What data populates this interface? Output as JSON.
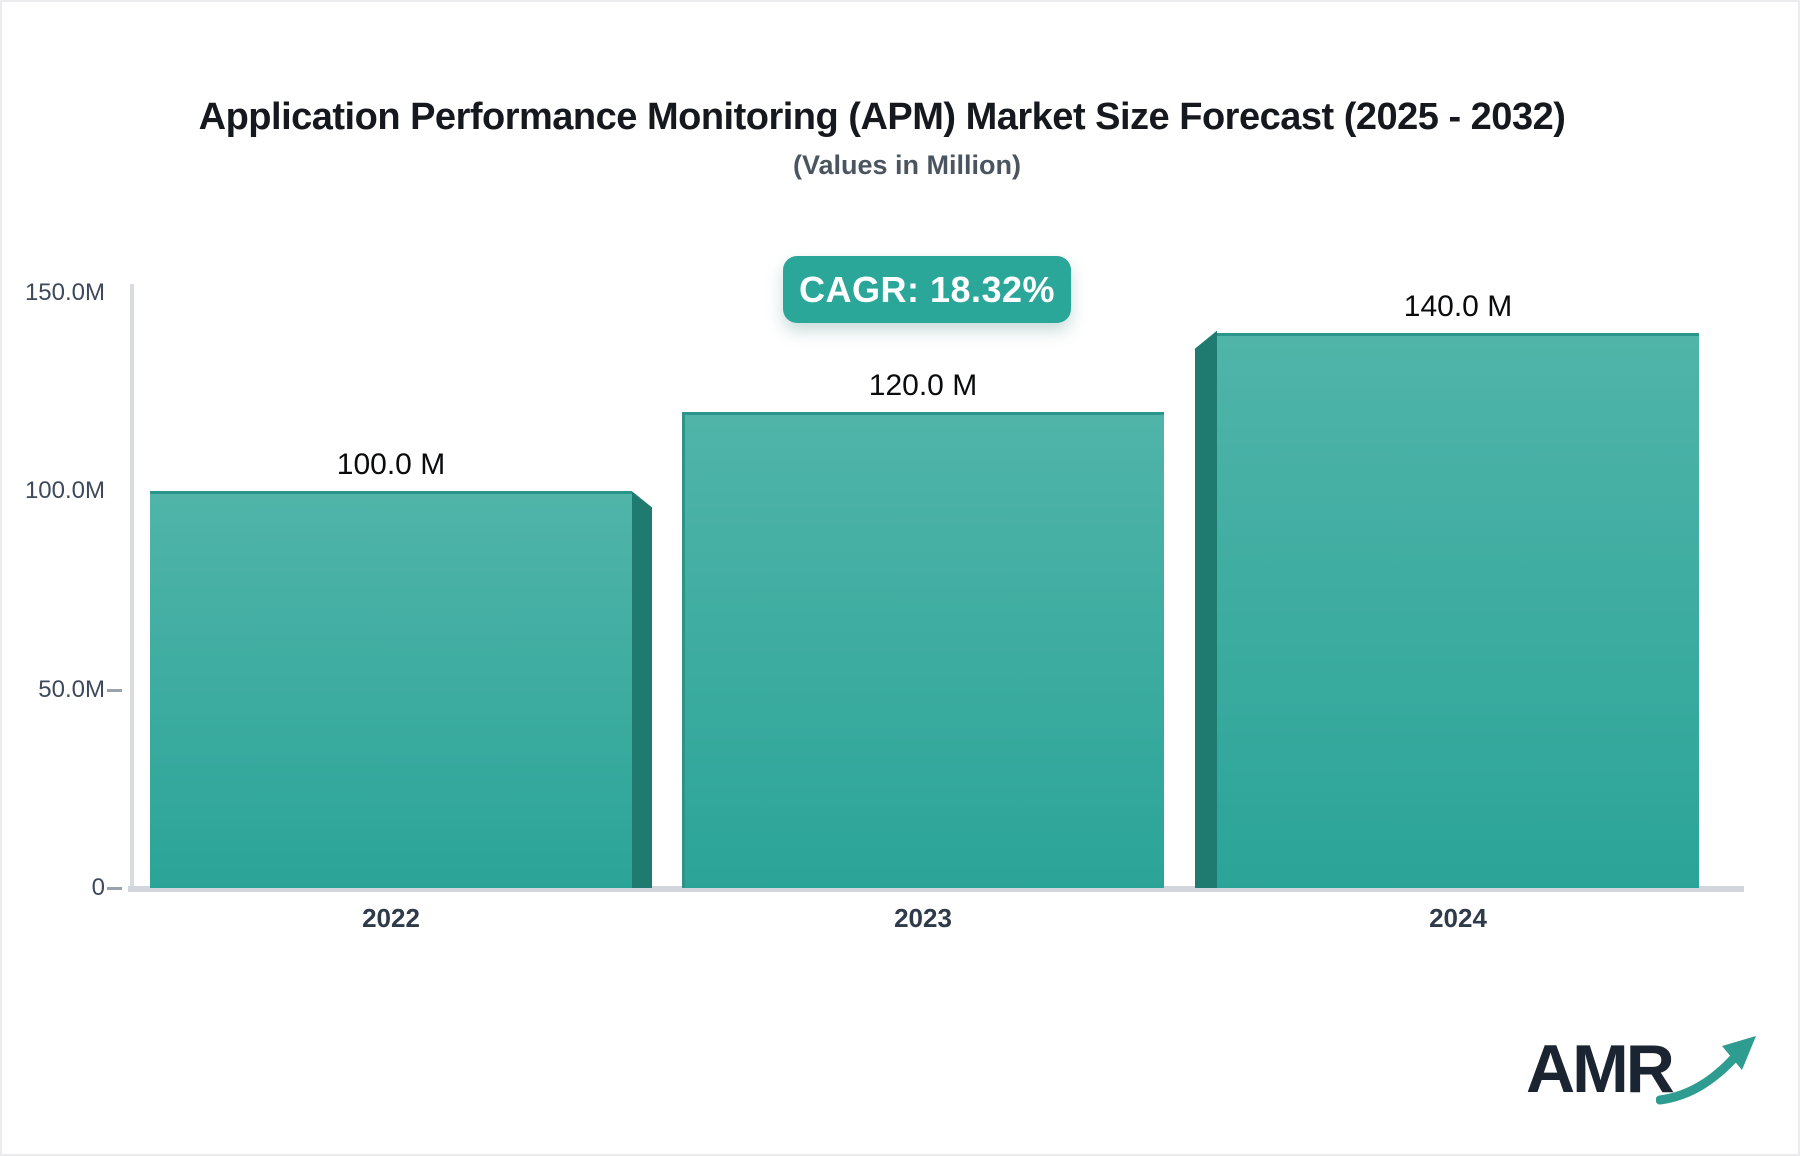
{
  "header": {
    "title": "Application Performance Monitoring (APM) Market Size Forecast (2025 - 2032)",
    "subtitle": "(Values in Million)"
  },
  "badge": {
    "label": "CAGR: 18.32%",
    "bg_color": "#2ba79a",
    "text_color": "#ffffff"
  },
  "chart_data": {
    "type": "bar",
    "title": "Application Performance Monitoring (APM) Market Size Forecast (2025 - 2032)",
    "subtitle": "(Values in Million)",
    "unit": "Million",
    "cagr_percent": 18.32,
    "categories": [
      "2022",
      "2023",
      "2024"
    ],
    "values": [
      100.0,
      120.0,
      140.0
    ],
    "bars": [
      {
        "category": "2022",
        "value": 100.0,
        "label": "100.0 M",
        "side": "right"
      },
      {
        "category": "2023",
        "value": 120.0,
        "label": "120.0 M",
        "side": "left-thin"
      },
      {
        "category": "2024",
        "value": 140.0,
        "label": "140.0 M",
        "side": "left"
      }
    ],
    "y_ticks": [
      {
        "label": "150.0M",
        "value": 150,
        "dash": false
      },
      {
        "label": "100.0M",
        "value": 100,
        "dash": false
      },
      {
        "label": "50.0M",
        "value": 50,
        "dash": true
      },
      {
        "label": "0",
        "value": 0,
        "dash": true
      }
    ],
    "ylim": [
      0,
      150
    ],
    "grid": false,
    "legend": "none",
    "colors": {
      "bar_top": "#50b4a9",
      "bar_bottom": "#2ba498",
      "bar_edge": "#2a958a",
      "bar_side": "#1f7b70",
      "bar_side_thin": "#2f9488",
      "axis_line": "#d5d9df",
      "y_label": "#3e4a5b",
      "x_label": "#2f3b49",
      "value_label": "#0a0b0d"
    }
  },
  "logo": {
    "text": "AMR",
    "arrow_icon": "trend-up-arrow",
    "text_color": "#1b2531",
    "arrow_color": "#2e9c90"
  }
}
